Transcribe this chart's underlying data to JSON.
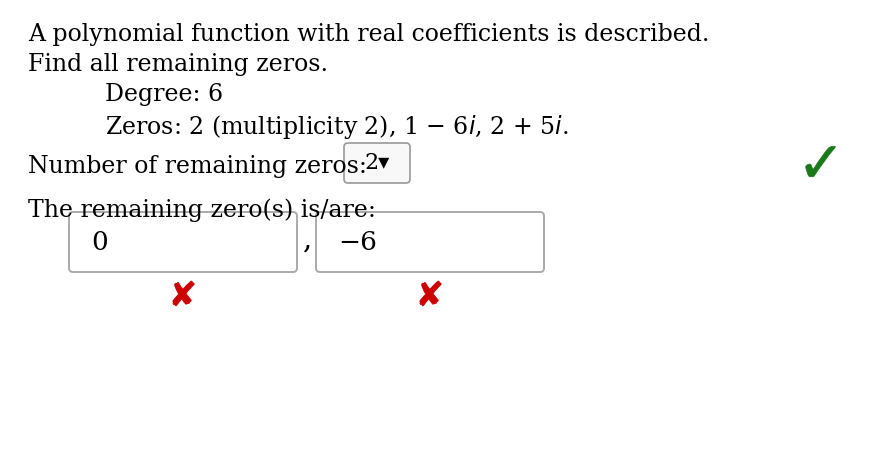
{
  "bg_color": "#ffffff",
  "line1": "A polynomial function with real coefficients is described.",
  "line2": "Find all remaining zeros.",
  "line3_label": "Degree: 6",
  "number_of_zeros_label": "Number of remaining zeros:",
  "dropdown_value": "2▾",
  "remaining_zeros_label": "The remaining zero(s) is/are:",
  "box1_value": "0",
  "box2_value": "−6",
  "font_size_main": 17,
  "font_size_box": 19,
  "green_check_color": "#1a7a1a",
  "red_x_color": "#cc0000",
  "text_color": "#000000",
  "box_edge_color": "#aaaaaa",
  "dropdown_edge_color": "#999999",
  "dropdown_face_color": "#f8f8f8"
}
